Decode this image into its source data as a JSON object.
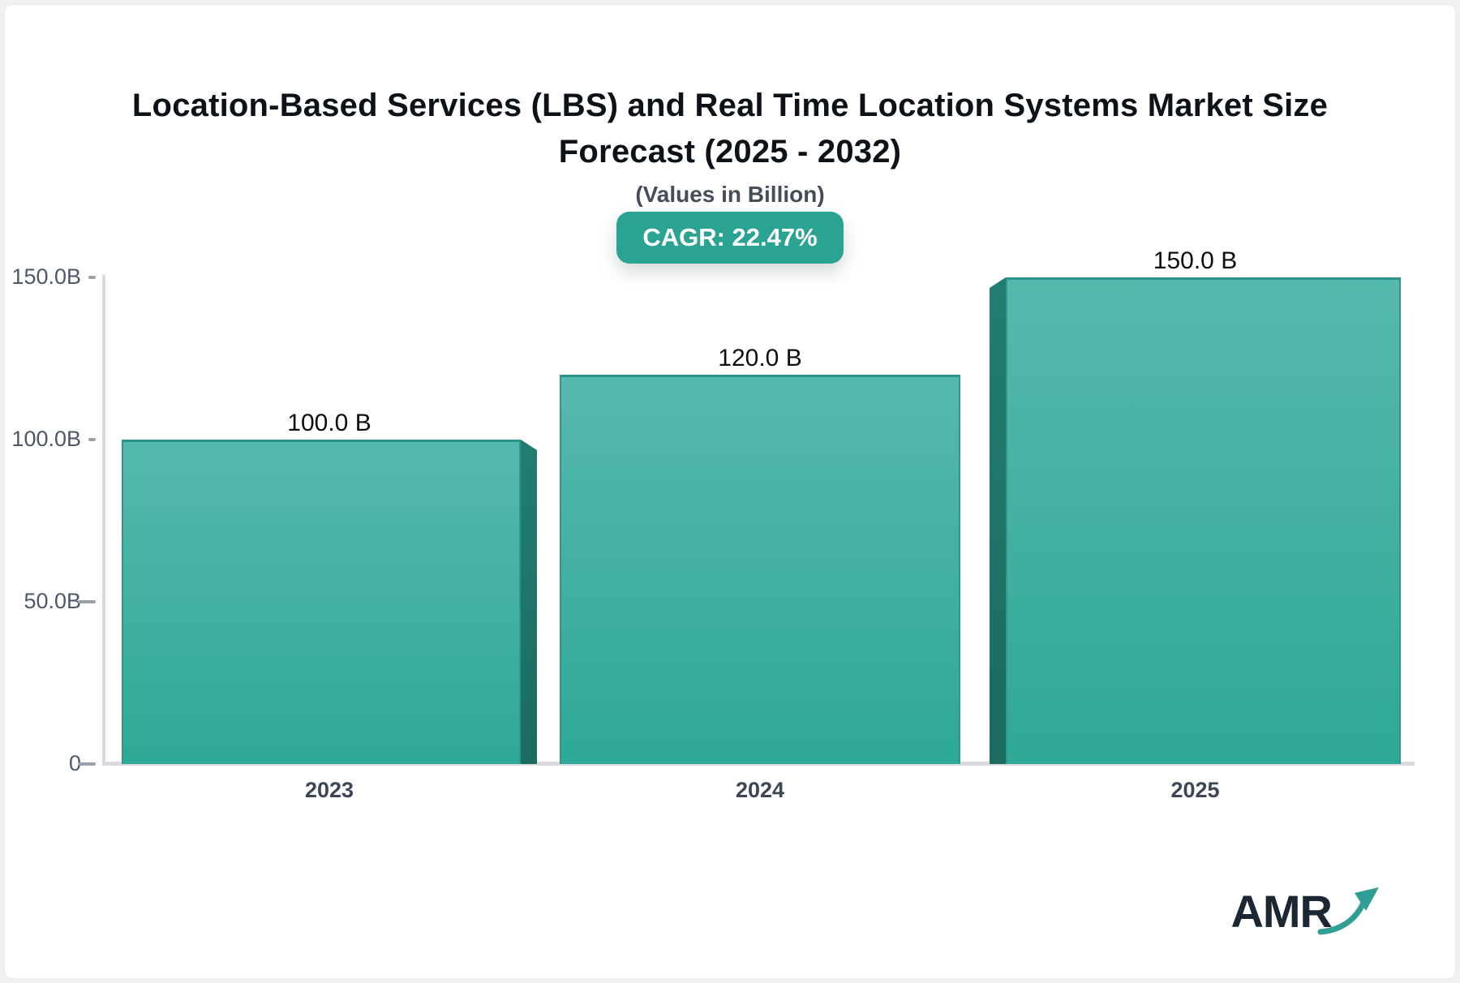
{
  "header": {
    "title_line1": "Location-Based Services (LBS) and Real Time Location Systems Market Size",
    "title_line2": "Forecast (2025 - 2032)",
    "subtitle": "(Values in Billion)",
    "cagr_label": "CAGR: 22.47%"
  },
  "chart_data": {
    "type": "bar",
    "title": "Location-Based Services (LBS) and Real Time Location Systems Market Size Forecast (2025 - 2032)",
    "subtitle": "(Values in Billion)",
    "cagr_percent": 22.47,
    "categories": [
      "2023",
      "2024",
      "2025"
    ],
    "values": [
      100.0,
      120.0,
      150.0
    ],
    "value_labels": [
      "100.0 B",
      "120.0 B",
      "150.0 B"
    ],
    "y_axis": {
      "ticks": [
        {
          "label": "150.0B",
          "value": 150
        },
        {
          "label": "100.0B",
          "value": 100
        },
        {
          "label": "50.0B",
          "value": 50
        },
        {
          "label": "0",
          "value": 0
        }
      ],
      "ylim": [
        0,
        150
      ]
    },
    "grid": false,
    "legend_position": "none",
    "bar_color": "#3aaca0",
    "bar_side_color": "#1f7569",
    "bar_border_color": "#2b9488"
  },
  "footer": {
    "logo_text": "AMR",
    "logo_arrow_icon": "growth-arrow-icon",
    "logo_arrow_color": "#2f9f93"
  },
  "colors": {
    "badge_bg": "#2aa392",
    "badge_text": "#ffffff",
    "axis_line": "#d8dadd",
    "title_text": "#0d1219",
    "subtitle_text": "#454d5a"
  }
}
